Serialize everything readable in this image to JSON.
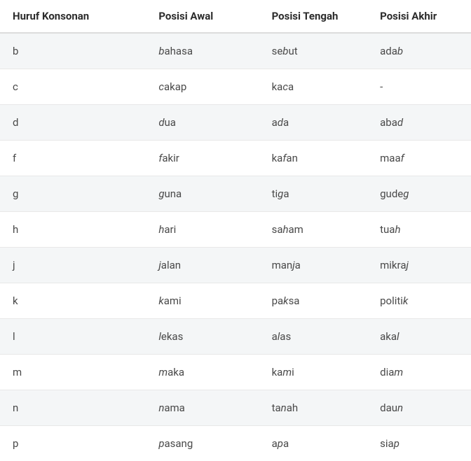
{
  "table": {
    "columns": [
      "Huruf Konsonan",
      "Posisi Awal",
      "Posisi Tengah",
      "Posisi Akhir"
    ],
    "col_widths_pct": [
      31,
      24,
      23,
      22
    ],
    "header_bg": "#ffffff",
    "header_color": "#2b2b2b",
    "header_fontweight": 700,
    "row_odd_bg": "#f4f6f7",
    "row_even_bg": "#ffffff",
    "border_color": "#e8e8e8",
    "header_border_color": "#dcdcdc",
    "text_color": "#4a4a4a",
    "fontsize": 15,
    "rows": [
      {
        "k": "b",
        "awal_pre": "",
        "awal_em": "b",
        "awal_post": "ahasa",
        "tengah_pre": "se",
        "tengah_em": "b",
        "tengah_post": "ut",
        "akhir_pre": "ada",
        "akhir_em": "b",
        "akhir_post": ""
      },
      {
        "k": "c",
        "awal_pre": "",
        "awal_em": "c",
        "awal_post": "akap",
        "tengah_pre": "ka",
        "tengah_em": "c",
        "tengah_post": "a",
        "akhir_pre": "-",
        "akhir_em": "",
        "akhir_post": ""
      },
      {
        "k": "d",
        "awal_pre": "",
        "awal_em": "d",
        "awal_post": "ua",
        "tengah_pre": "a",
        "tengah_em": "d",
        "tengah_post": "a",
        "akhir_pre": "aba",
        "akhir_em": "d",
        "akhir_post": ""
      },
      {
        "k": "f",
        "awal_pre": "",
        "awal_em": "f",
        "awal_post": "akir",
        "tengah_pre": "ka",
        "tengah_em": "f",
        "tengah_post": "an",
        "akhir_pre": "maa",
        "akhir_em": "f",
        "akhir_post": ""
      },
      {
        "k": "g",
        "awal_pre": "",
        "awal_em": "g",
        "awal_post": "una",
        "tengah_pre": "ti",
        "tengah_em": "g",
        "tengah_post": "a",
        "akhir_pre": "gude",
        "akhir_em": "g",
        "akhir_post": ""
      },
      {
        "k": "h",
        "awal_pre": "",
        "awal_em": "h",
        "awal_post": "ari",
        "tengah_pre": "sa",
        "tengah_em": "h",
        "tengah_post": "am",
        "akhir_pre": "tua",
        "akhir_em": "h",
        "akhir_post": ""
      },
      {
        "k": "j",
        "awal_pre": "",
        "awal_em": "j",
        "awal_post": "alan",
        "tengah_pre": "man",
        "tengah_em": "j",
        "tengah_post": "a",
        "akhir_pre": "mikra",
        "akhir_em": "j",
        "akhir_post": ""
      },
      {
        "k": "k",
        "awal_pre": "",
        "awal_em": "k",
        "awal_post": "ami",
        "tengah_pre": "pa",
        "tengah_em": "k",
        "tengah_post": "sa",
        "akhir_pre": "politi",
        "akhir_em": "k",
        "akhir_post": ""
      },
      {
        "k": "l",
        "awal_pre": "",
        "awal_em": "l",
        "awal_post": "ekas",
        "tengah_pre": "a",
        "tengah_em": "l",
        "tengah_post": "as",
        "akhir_pre": "aka",
        "akhir_em": "l",
        "akhir_post": ""
      },
      {
        "k": "m",
        "awal_pre": "",
        "awal_em": "m",
        "awal_post": "aka",
        "tengah_pre": "ka",
        "tengah_em": "m",
        "tengah_post": "i",
        "akhir_pre": "dia",
        "akhir_em": "m",
        "akhir_post": ""
      },
      {
        "k": "n",
        "awal_pre": "",
        "awal_em": "n",
        "awal_post": "ama",
        "tengah_pre": "ta",
        "tengah_em": "n",
        "tengah_post": "ah",
        "akhir_pre": "dau",
        "akhir_em": "n",
        "akhir_post": ""
      },
      {
        "k": "p",
        "awal_pre": "",
        "awal_em": "p",
        "awal_post": "asang",
        "tengah_pre": "a",
        "tengah_em": "p",
        "tengah_post": "a",
        "akhir_pre": "sia",
        "akhir_em": "p",
        "akhir_post": ""
      }
    ]
  }
}
